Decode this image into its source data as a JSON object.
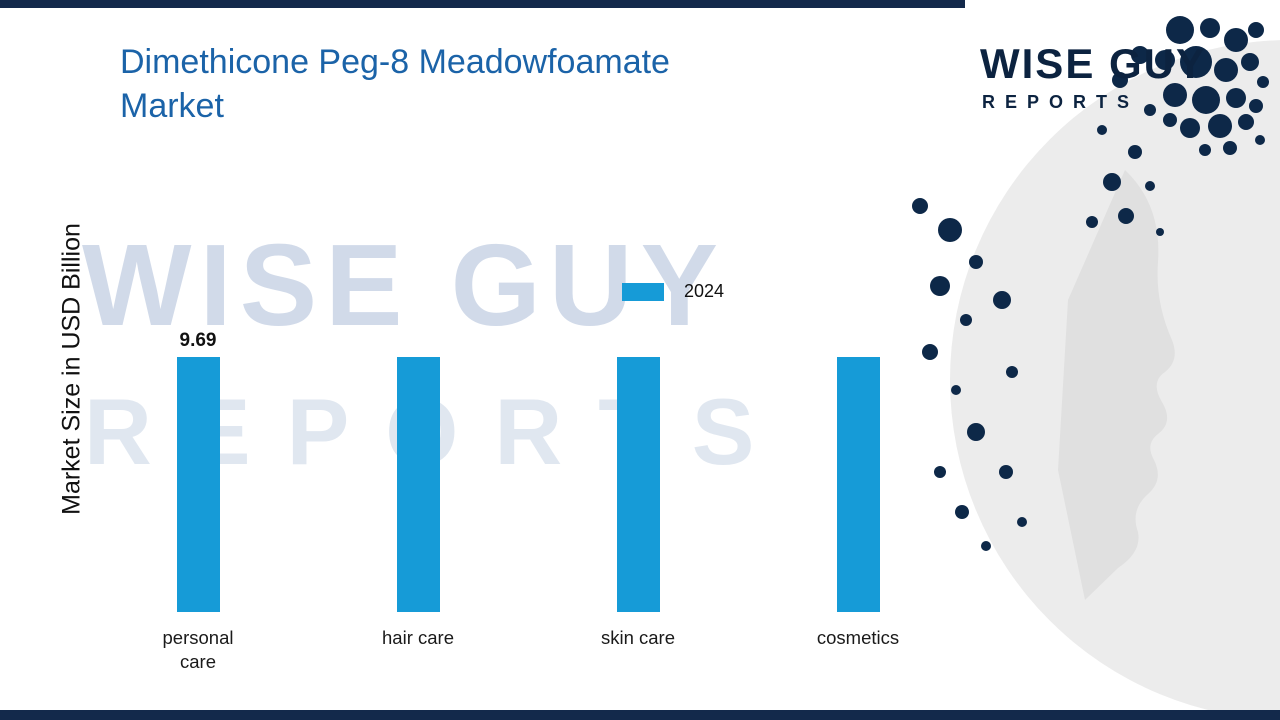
{
  "page": {
    "background": "#ffffff",
    "accent_bar_color": "#13294b"
  },
  "title": {
    "text": "Dimethicone Peg-8 Meadowfoamate Market",
    "color": "#1b63a8"
  },
  "logo": {
    "name": "WISE GUY",
    "subtitle": "REPORTS",
    "color": "#0c2340",
    "icon": "wiseguy-head-icon"
  },
  "watermark": {
    "line1": "WISE GUY",
    "line2": "REPORTS"
  },
  "chart_data": {
    "type": "bar",
    "title": "Dimethicone Peg-8 Meadowfoamate Market",
    "ylabel": "Market Size in USD Billion",
    "xlabel": "",
    "categories": [
      "personal care",
      "hair care",
      "skin care",
      "cosmetics"
    ],
    "series": [
      {
        "name": "2024",
        "values": [
          9.69,
          9.69,
          9.69,
          9.69
        ]
      }
    ],
    "value_labels": [
      "9.69",
      "",
      "",
      ""
    ],
    "ylim": [
      0,
      9.69
    ],
    "grid": false,
    "legend_position": "top-center",
    "bar_color": "#169bd7"
  }
}
